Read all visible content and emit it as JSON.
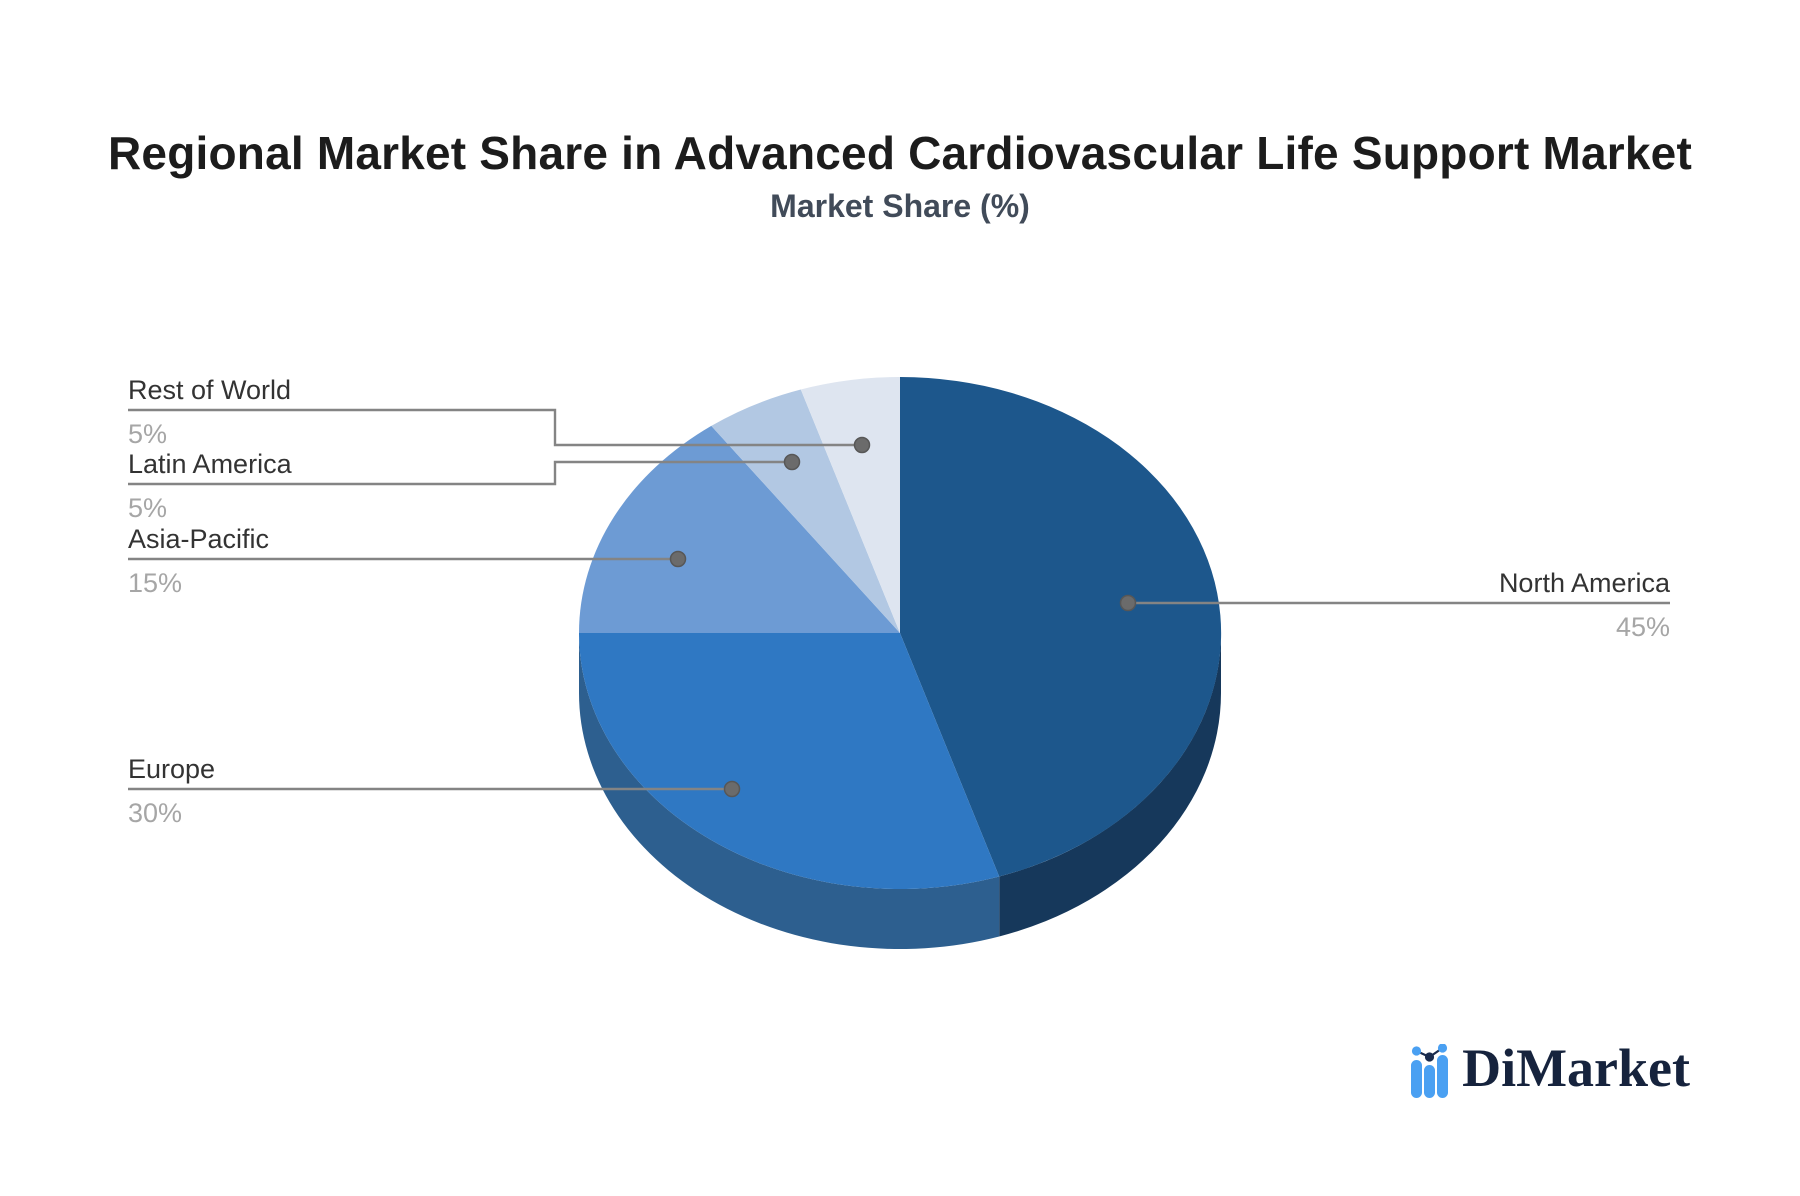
{
  "title": "Regional Market Share in Advanced Cardiovascular Life Support Market",
  "subtitle": "Market Share (%)",
  "brand": {
    "name": "DiMarket",
    "icon": "bar-line-chart-logo",
    "text_color": "#16233d",
    "icon_color": "#4aa0f2",
    "icon_accent": "#1a2b4d"
  },
  "chart_data": {
    "type": "pie",
    "style": "3d-pie",
    "unit": "%",
    "start_angle_deg": 90,
    "direction": "clockwise",
    "legend_position": "callout-labels",
    "title": "Regional Market Share in Advanced Cardiovascular Life Support Market",
    "subtitle": "Market Share (%)",
    "slices": [
      {
        "label": "North America",
        "value": 45,
        "color": "#1d578c",
        "side_color": "#16385b"
      },
      {
        "label": "Europe",
        "value": 30,
        "color": "#2f78c3",
        "side_color": "#2d5f8f"
      },
      {
        "label": "Asia-Pacific",
        "value": 15,
        "color": "#6d9bd4",
        "side_color": "#56799f"
      },
      {
        "label": "Latin America",
        "value": 5,
        "color": "#b2c8e3",
        "side_color": "#8fa3bd"
      },
      {
        "label": "Rest of World",
        "value": 5,
        "color": "#dee5f0",
        "side_color": "#b5bfce"
      }
    ]
  }
}
